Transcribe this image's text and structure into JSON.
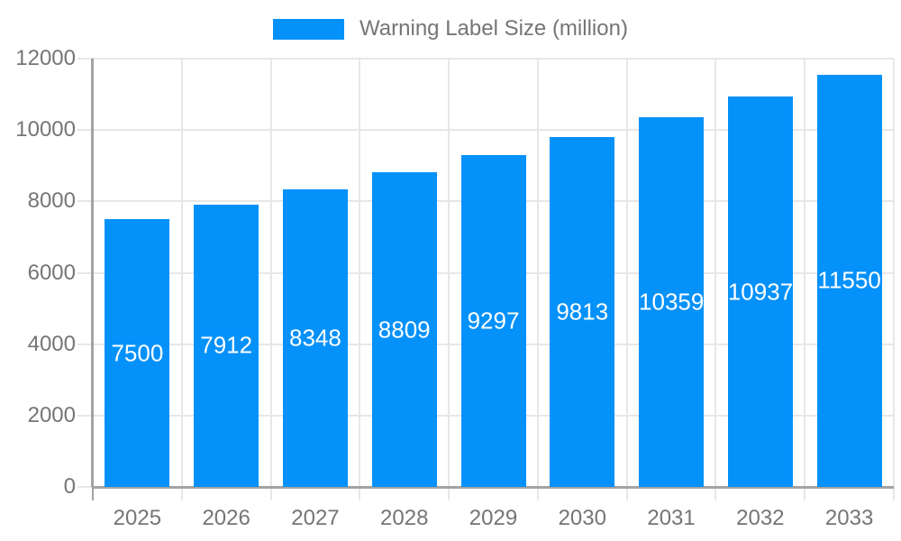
{
  "chart_data": {
    "type": "bar",
    "title": "Warning Label Size (million)",
    "legend_position": "top",
    "categories": [
      "2025",
      "2026",
      "2027",
      "2028",
      "2029",
      "2030",
      "2031",
      "2032",
      "2033"
    ],
    "values": [
      7500,
      7912,
      8348,
      8809,
      9297,
      9813,
      10359,
      10937,
      11550
    ],
    "bar_value_labels": [
      "7500",
      "7912",
      "8348",
      "8809",
      "9297",
      "9813",
      "10359",
      "10937",
      "11550"
    ],
    "xlabel": "",
    "ylabel": "",
    "ylim": [
      0,
      12000
    ],
    "yticks": [
      0,
      2000,
      4000,
      6000,
      8000,
      10000,
      12000
    ],
    "ytick_labels": [
      "0",
      "2000",
      "4000",
      "6000",
      "8000",
      "10000",
      "12000"
    ],
    "grid": "on",
    "colors": {
      "bar": "#0591fa",
      "bar_label_text": "#ffffff",
      "grid": "#e7e7e7",
      "axis": "#a3a3a3",
      "tick_text": "#757575",
      "legend_text": "#757575",
      "background": "#ffffff"
    }
  }
}
